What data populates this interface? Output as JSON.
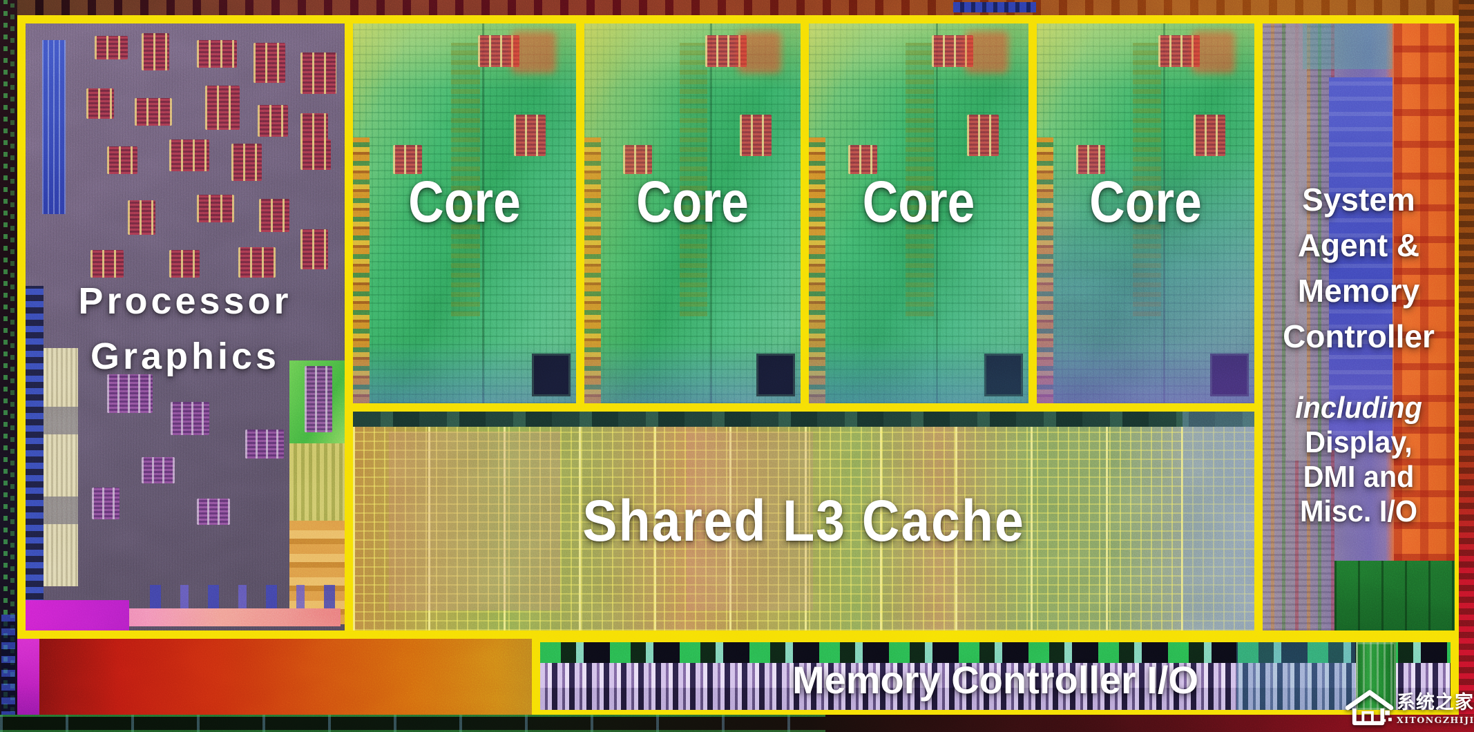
{
  "labels": {
    "processor_graphics_line1": "Processor",
    "processor_graphics_line2": "Graphics",
    "cores": [
      "Core",
      "Core",
      "Core",
      "Core"
    ],
    "system_agent_lines": [
      "System",
      "Agent &",
      "Memory",
      "Controller"
    ],
    "system_agent_note_emphasis": "including",
    "system_agent_note_lines": [
      "Display,",
      "DMI and",
      "Misc. I/O"
    ],
    "shared_l3": "Shared L3 Cache",
    "memory_io": "Memory Controller I/O"
  },
  "watermark": {
    "site_name": "系统之家",
    "site_url": "XITONGZHIJIA.NET"
  },
  "colors": {
    "region_outline": "#f5dc04",
    "label_text": "#ffffff"
  }
}
